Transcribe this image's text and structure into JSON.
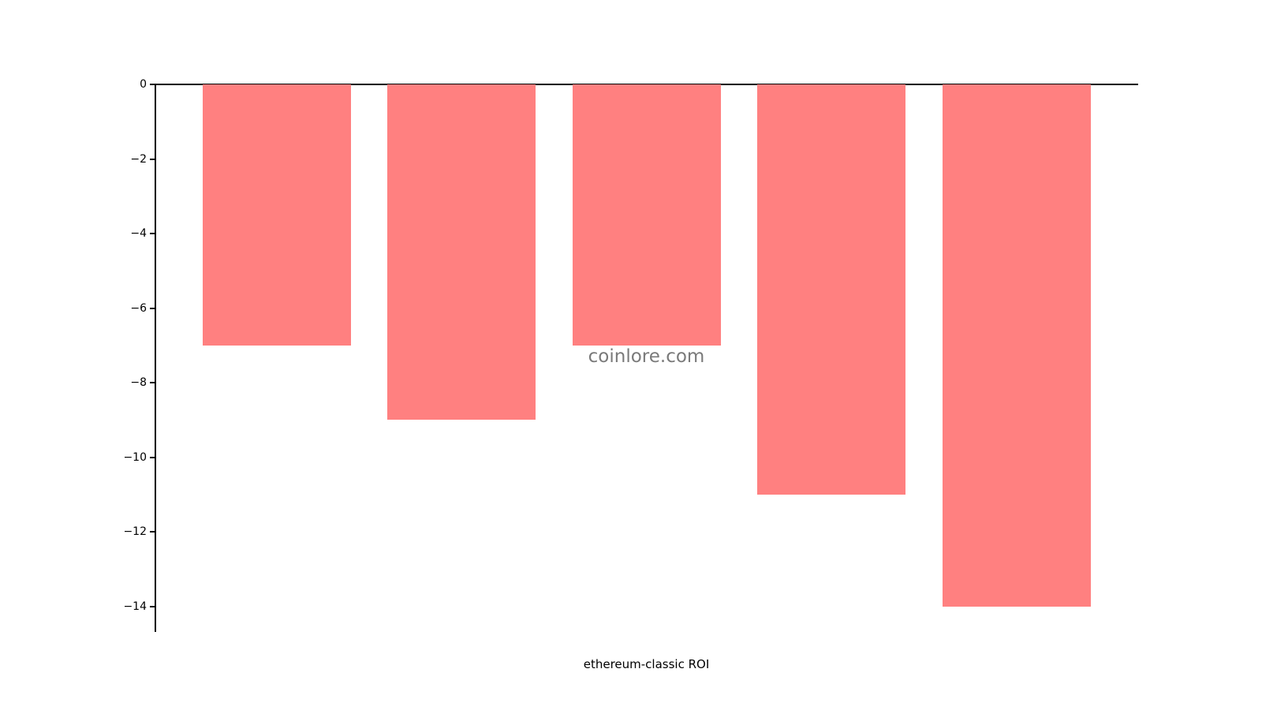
{
  "chart_data": {
    "type": "bar",
    "values": [
      -7,
      -9,
      -7,
      -11,
      -14
    ],
    "series": [
      {
        "name": "ROI",
        "values": [
          -7,
          -9,
          -7,
          -11,
          -14
        ]
      }
    ],
    "title": "",
    "xlabel": "ethereum-classic ROI",
    "ylabel": "",
    "ylim": [
      -14.7,
      0
    ],
    "yticks": [
      0,
      -2,
      -4,
      -6,
      -8,
      -10,
      -12,
      -14
    ],
    "ytick_labels": [
      "0",
      "−2",
      "−4",
      "−6",
      "−8",
      "−10",
      "−12",
      "−14"
    ],
    "grid": false,
    "legend_position": "none",
    "watermark": "coinlore.com",
    "bar_color": "#ff8080",
    "axis_color": "#000000",
    "watermark_color": "#7a7a7a",
    "text_color": "#000000"
  }
}
